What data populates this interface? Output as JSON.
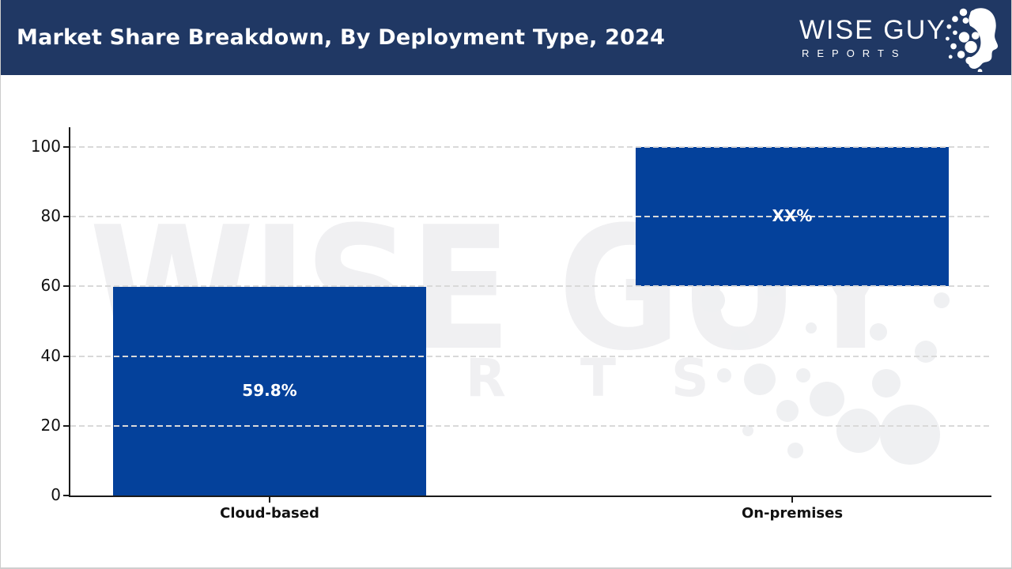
{
  "header": {
    "title": "Market Share Breakdown, By Deployment Type, 2024",
    "logo": {
      "name": "Wise Guy Reports",
      "line1": "WISE GUY",
      "line2": "REPORTS"
    }
  },
  "colors": {
    "header_bg": "#203864",
    "bar": "#04419b",
    "grid": "#d9d9d9",
    "axis": "#1a1a1a",
    "bar_label": "#ffffff",
    "watermark": "#f0f0f2"
  },
  "watermark": {
    "line1": "WISE GUY",
    "letters": [
      "R",
      "T",
      "S"
    ]
  },
  "chart_data": {
    "type": "bar",
    "title": "Market Share Breakdown, By Deployment Type, 2024",
    "categories": [
      "Cloud-based",
      "On-premises"
    ],
    "bars": [
      {
        "category": "Cloud-based",
        "base": 0,
        "top": 59.8,
        "label": "59.8%"
      },
      {
        "category": "On-premises",
        "base": 60,
        "top": 100,
        "label": "XX%"
      }
    ],
    "yticks": [
      0,
      20,
      40,
      60,
      80,
      100
    ],
    "ylim": [
      0,
      106
    ],
    "xlabel": "",
    "ylabel": "",
    "grid": "horizontal-dashed",
    "legend": "none"
  }
}
